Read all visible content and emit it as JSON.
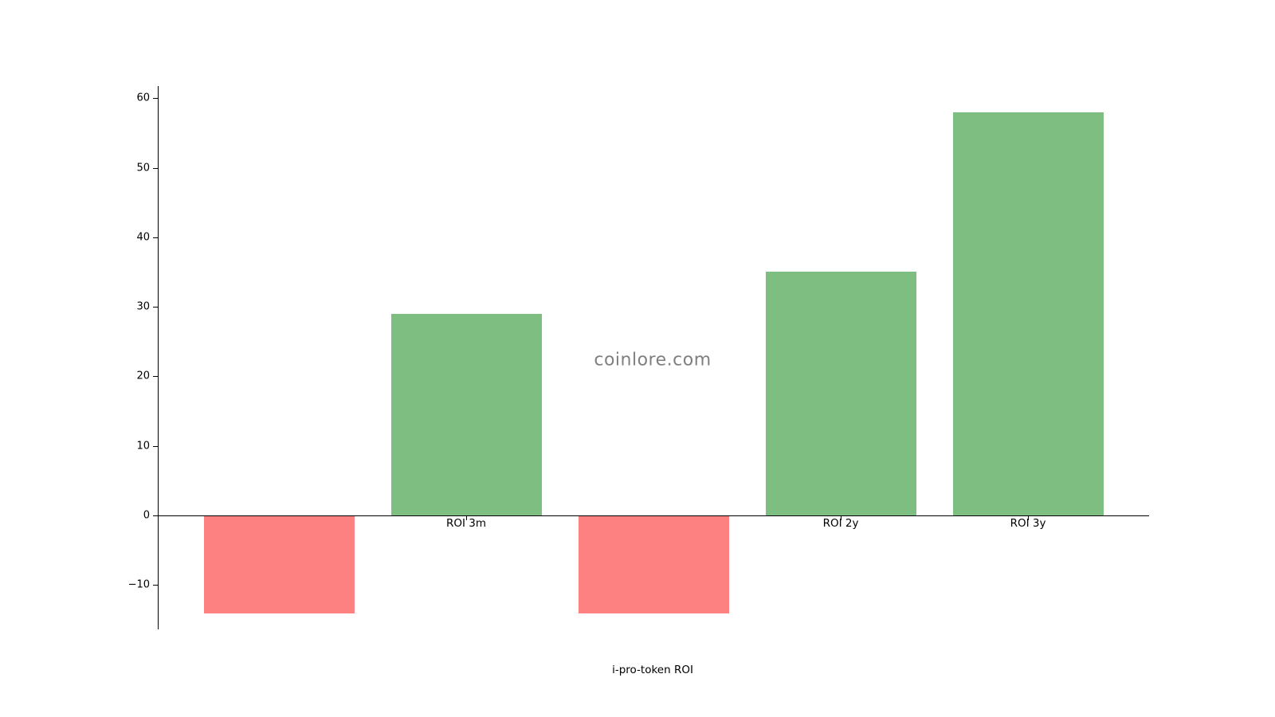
{
  "page": {
    "background": "#ffffff"
  },
  "watermark": {
    "text": "coinlore.com",
    "color": "#7f7f7f"
  },
  "chart_data": {
    "type": "bar",
    "title": "i-pro-token ROI",
    "categories": [
      "",
      "ROI 3m",
      "",
      "ROI 2y",
      "ROI 3y"
    ],
    "values": [
      -14,
      29,
      -14,
      35,
      58
    ],
    "bar_colors": [
      "#fe8181",
      "#7ebe80",
      "#fe8181",
      "#7ebe80",
      "#7ebe80"
    ],
    "positive_color": "#7ebe80",
    "negative_color": "#fe8181",
    "y_ticks": [
      60,
      50,
      40,
      30,
      20,
      10,
      0,
      -10
    ],
    "y_tick_labels": [
      "60",
      "50",
      "40",
      "30",
      "20",
      "10",
      "0",
      "−10"
    ],
    "ylim": [
      -16.4,
      62
    ],
    "xlabel": "",
    "ylabel": "",
    "grid": false,
    "legend": null,
    "axis_color": "#000000"
  }
}
